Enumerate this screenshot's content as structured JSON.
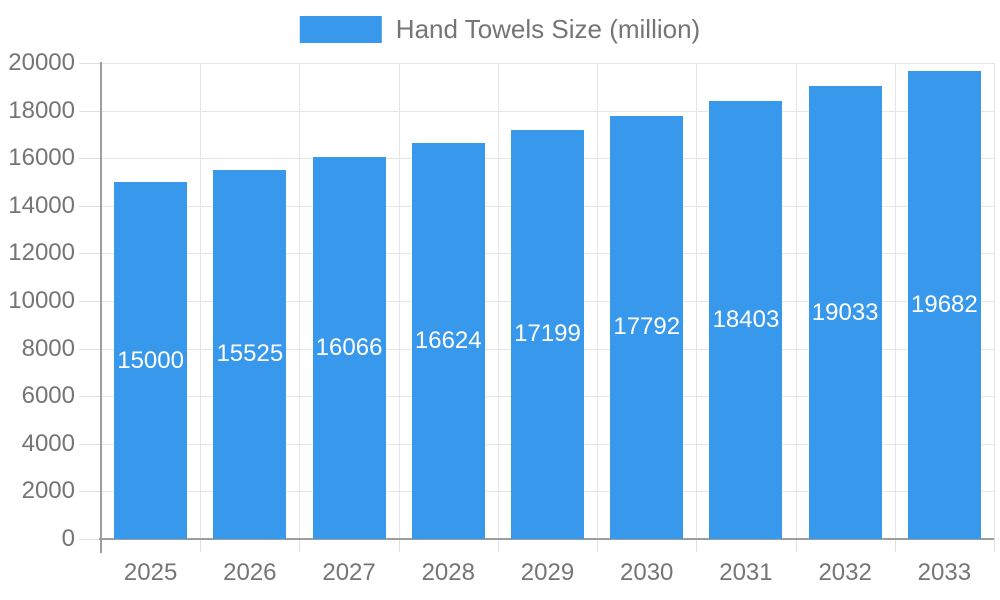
{
  "chart_data": {
    "type": "bar",
    "title": "Hand Towels Size (million)",
    "legend_entries": [
      "Hand Towels Size (million)"
    ],
    "legend_position": "top",
    "categories": [
      "2025",
      "2026",
      "2027",
      "2028",
      "2029",
      "2030",
      "2031",
      "2032",
      "2033"
    ],
    "series": [
      {
        "name": "Hand Towels Size (million)",
        "values": [
          15000,
          15525,
          16066,
          16624,
          17199,
          17792,
          18403,
          19033,
          19682
        ]
      }
    ],
    "bar_labels": [
      "15000",
      "15525",
      "16066",
      "16624",
      "17199",
      "17792",
      "18403",
      "19033",
      "19682"
    ],
    "bar_label_position": "inside-middle",
    "xlabel": "",
    "ylabel": "",
    "ylim": [
      0,
      20000
    ],
    "yticks": [
      0,
      2000,
      4000,
      6000,
      8000,
      10000,
      12000,
      14000,
      16000,
      18000,
      20000
    ],
    "ytick_labels": [
      "0",
      "2000",
      "4000",
      "6000",
      "8000",
      "10000",
      "12000",
      "14000",
      "16000",
      "18000",
      "20000"
    ],
    "grid": true,
    "colors": {
      "bar": "#3898EC",
      "bar_label_text": "#FFFFFF",
      "axis_text": "#757575",
      "axis_line": "#9E9E9E",
      "gridline": "#E6E6E6",
      "tick": "#E0E0E0",
      "background": "#FFFFFF"
    }
  }
}
